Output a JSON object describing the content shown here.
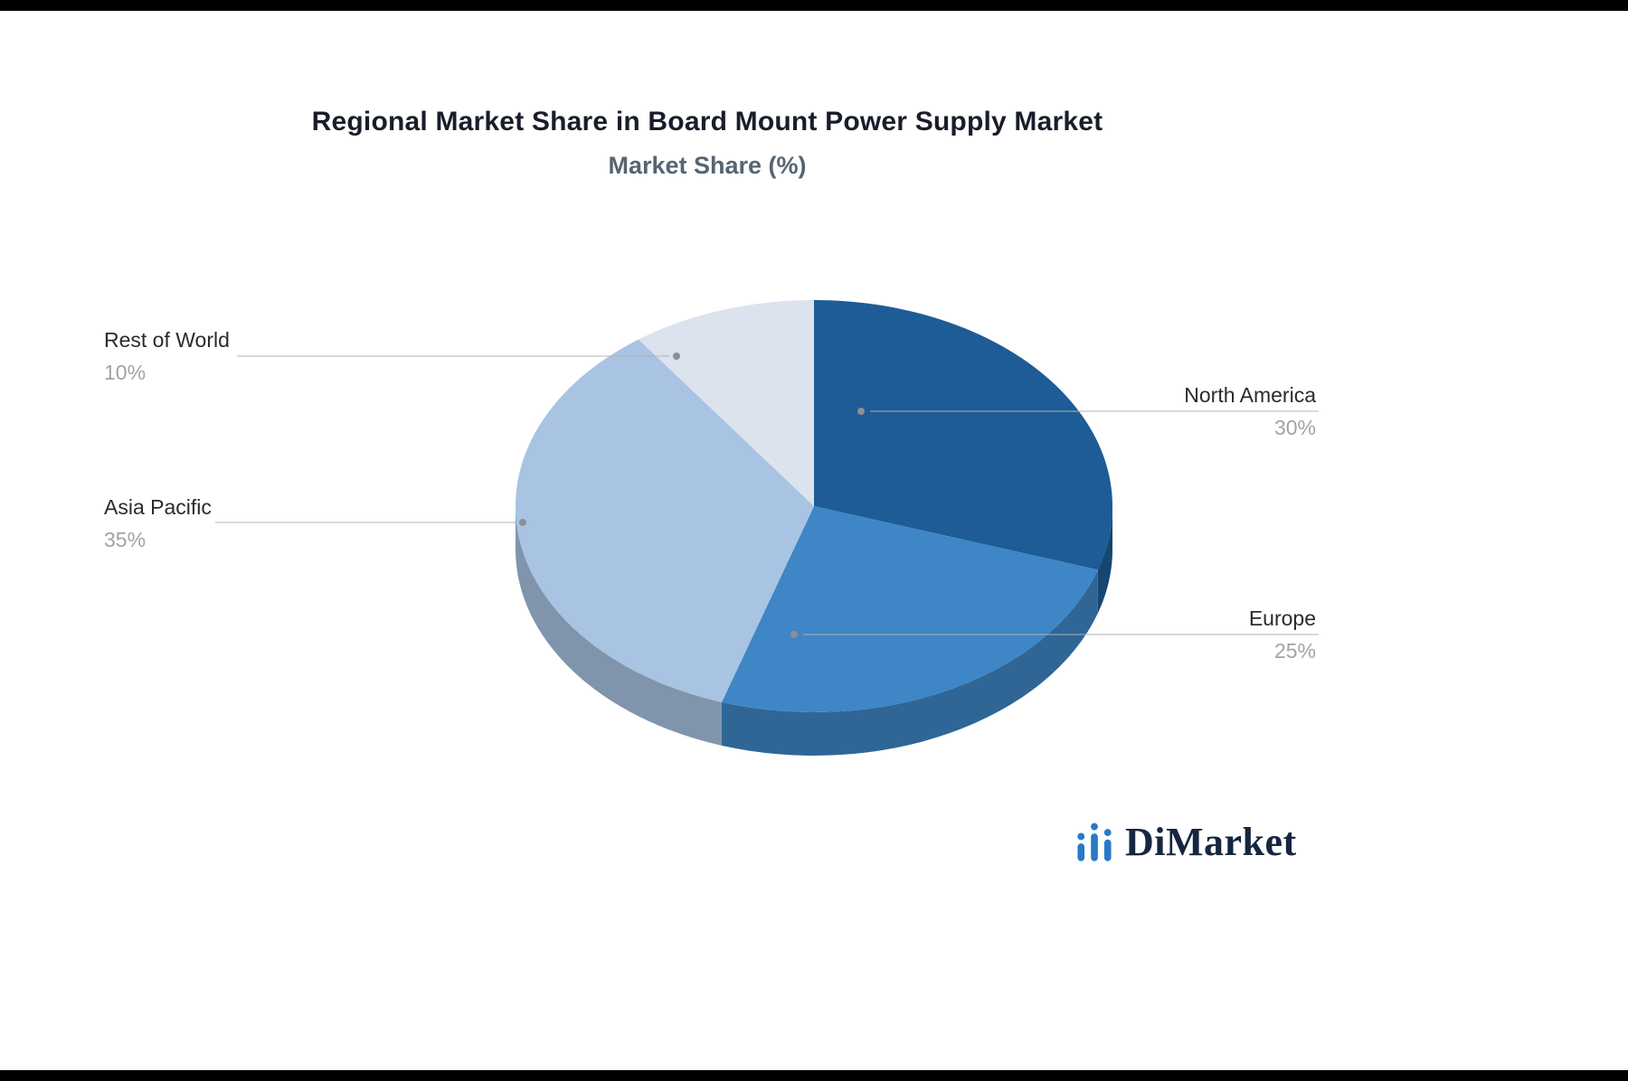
{
  "chart_data": {
    "type": "pie",
    "title": "Regional Market Share in Board Mount Power Supply Market",
    "subtitle": "Market Share (%)",
    "unit": "percent",
    "effect": "3d",
    "direction": "clockwise",
    "start_angle_deg": -90,
    "legend": "none",
    "labels_style": "outside-with-leader-lines",
    "slices": [
      {
        "label": "North America",
        "value": 30,
        "display": "30%",
        "color": "#1D5C96"
      },
      {
        "label": "Europe",
        "value": 25,
        "display": "25%",
        "color": "#3E86C6"
      },
      {
        "label": "Asia Pacific",
        "value": 35,
        "display": "35%",
        "color": "#A8C4E2"
      },
      {
        "label": "Rest of World",
        "value": 10,
        "display": "10%",
        "color": "#DCE3EF"
      }
    ]
  },
  "branding": {
    "logo_text": "DiMarket",
    "logo_icon": "bar-chart-dots-icon",
    "logo_text_color": "#16263F",
    "logo_icon_color": "#2779C8"
  },
  "colors": {
    "background": "#FFFFFF",
    "border_bars": "#000000",
    "title_text": "#191D2B",
    "subtitle_text": "#566573",
    "slice_label_text": "#2B2B2B",
    "percent_text": "#A3A3A3",
    "leader_line": "#B3B3B3",
    "leader_dot": "#8F8F8F"
  }
}
